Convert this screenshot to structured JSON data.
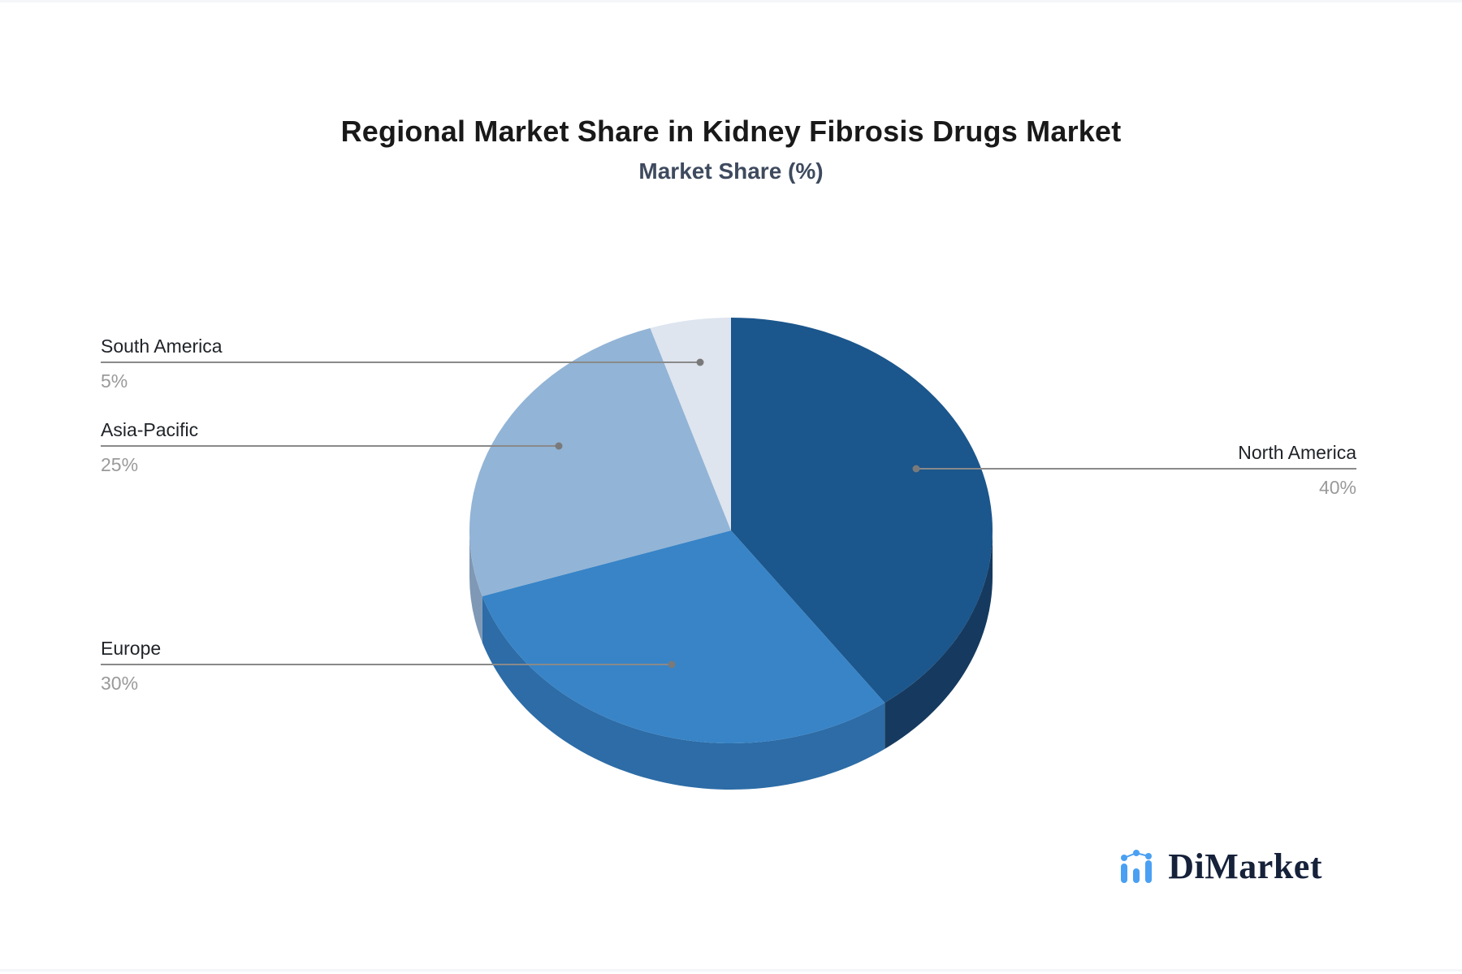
{
  "title": "Regional Market Share in Kidney Fibrosis Drugs Market",
  "subtitle": "Market Share (%)",
  "logo": {
    "text": "DiMarket",
    "icon": "bar-line-chart-icon",
    "text_color": "#16213a",
    "icon_color": "#4aa0f2"
  },
  "colors": {
    "background": "#ffffff",
    "title_text": "#191919",
    "subtitle_text": "#3e4a5e",
    "label_text": "#1f2328",
    "percent_text": "#9a9a9a",
    "leader_line": "#8a8a8a",
    "leader_dot": "#7a7a7a"
  },
  "chart_data": {
    "type": "pie",
    "title": "Regional Market Share in Kidney Fibrosis Drugs Market",
    "subtitle": "Market Share (%)",
    "unit": "%",
    "effect": "3d",
    "start_angle": "12 o'clock",
    "direction": "clockwise",
    "legend_position": "callout-labels",
    "slices": [
      {
        "label": "North America",
        "value": 40,
        "display": "40%",
        "color": "#1b568c",
        "side_color": "#163a5f",
        "label_side": "right"
      },
      {
        "label": "Europe",
        "value": 30,
        "display": "30%",
        "color": "#3884c7",
        "side_color": "#2d6ca6",
        "label_side": "left"
      },
      {
        "label": "Asia-Pacific",
        "value": 25,
        "display": "25%",
        "color": "#92b4d6",
        "side_color": "#7f98b5",
        "label_side": "left"
      },
      {
        "label": "South America",
        "value": 5,
        "display": "5%",
        "color": "#dee5ef",
        "side_color": "#c2cfdf",
        "label_side": "left"
      }
    ]
  }
}
